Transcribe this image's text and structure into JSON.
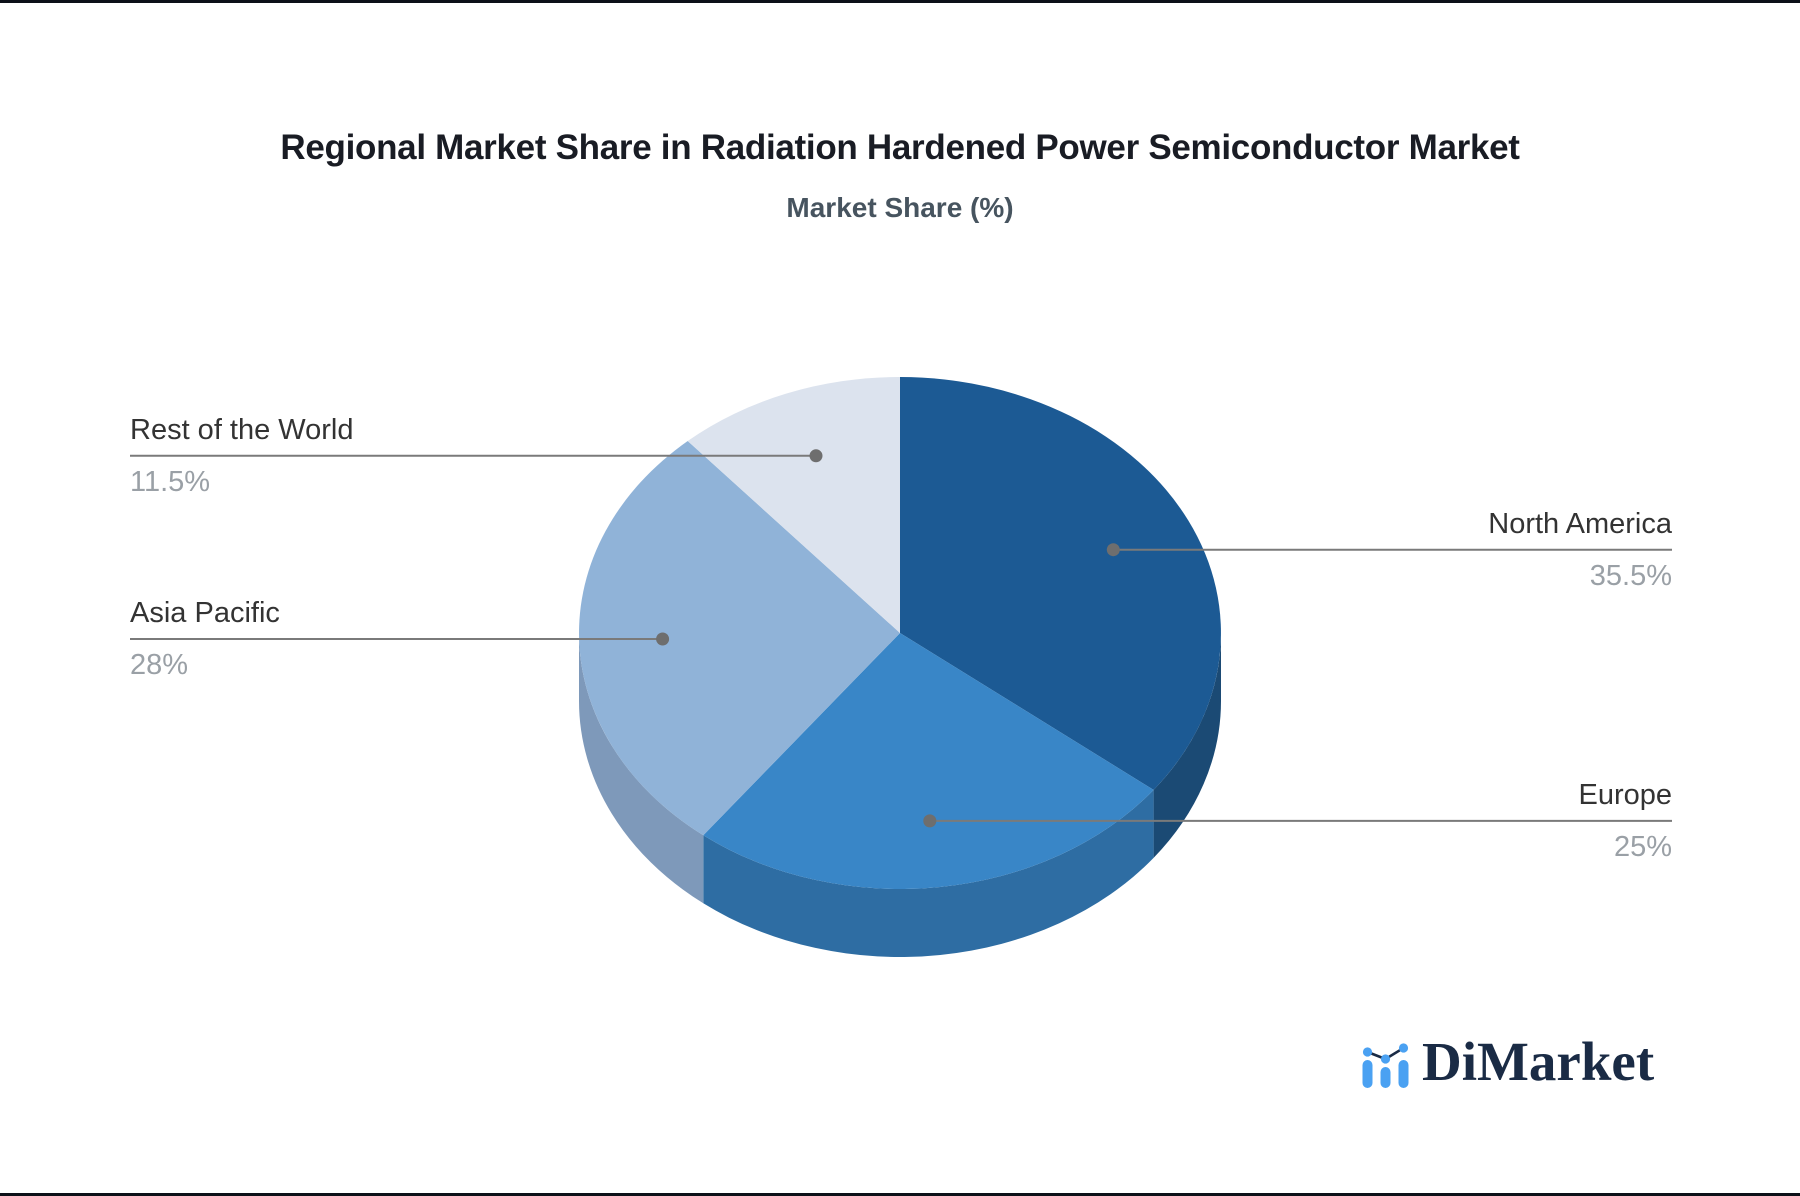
{
  "page": {
    "background": "#ffffff",
    "edge_line_color": "#0c1018"
  },
  "chart_data": {
    "type": "pie",
    "style": "3d-pie",
    "title": "Regional Market Share in Radiation Hardened Power Semiconductor Market",
    "subtitle": "Market Share (%)",
    "unit": "%",
    "total": 100,
    "start_angle_deg": 0,
    "direction": "clockwise",
    "legend": "none",
    "labels_shown_as": "callouts-with-leader-lines",
    "slices": [
      {
        "label": "North America",
        "value": 35.5,
        "display": "35.5%",
        "color": "#1c5a94",
        "side_color": "#1b4a74"
      },
      {
        "label": "Europe",
        "value": 25,
        "display": "25%",
        "color": "#3986c7",
        "side_color": "#2e6da3"
      },
      {
        "label": "Asia Pacific",
        "value": 28,
        "display": "28%",
        "color": "#90b3d8",
        "side_color": "#7e99ba"
      },
      {
        "label": "Rest of the World",
        "value": 11.5,
        "display": "11.5%",
        "color": "#dce3ee",
        "side_color": "#c3ccda"
      }
    ],
    "label_color": "#333333",
    "value_color": "#9aa0a6",
    "leader_line_color": "#7a7a7a",
    "leader_dot_color": "#6e6e6e"
  },
  "branding": {
    "logo_text": "DiMarket",
    "logo_icon": "bar-chart-trend-icon",
    "logo_icon_color": "#4aa1f2",
    "logo_line_color": "#1a2b45",
    "logo_text_color": "#1a2b45"
  }
}
